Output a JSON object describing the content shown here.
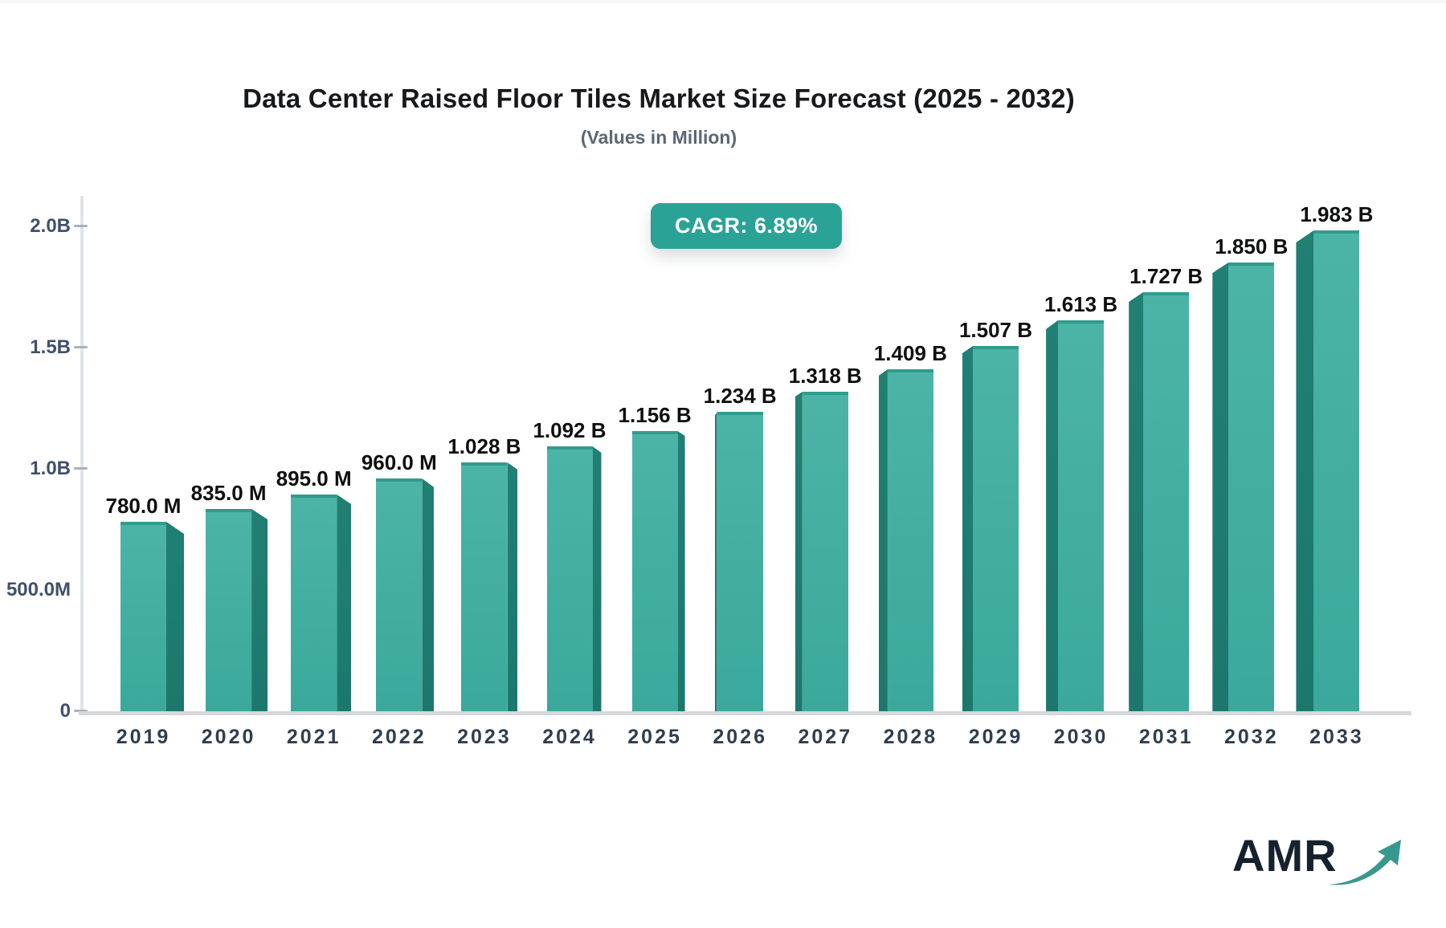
{
  "header": {
    "title": "Data Center Raised Floor Tiles Market Size Forecast (2025 - 2032)",
    "subtitle": "(Values in Million)"
  },
  "badge": {
    "label": "CAGR: 6.89%"
  },
  "logo": {
    "text": "AMR",
    "arrow_icon": "growth-arrow-icon"
  },
  "chart_data": {
    "type": "bar",
    "title": "Data Center Raised Floor Tiles Market Size Forecast (2025 - 2032)",
    "subtitle": "(Values in Million)",
    "cagr_label": "CAGR: 6.89%",
    "unit": "USD, values in millions/billions",
    "categories": [
      "2019",
      "2020",
      "2021",
      "2022",
      "2023",
      "2024",
      "2025",
      "2026",
      "2027",
      "2028",
      "2029",
      "2030",
      "2031",
      "2032",
      "2033"
    ],
    "values_billion": [
      0.78,
      0.835,
      0.895,
      0.96,
      1.028,
      1.092,
      1.156,
      1.234,
      1.318,
      1.409,
      1.507,
      1.613,
      1.727,
      1.85,
      1.983
    ],
    "labels": [
      "780.0 M",
      "835.0 M",
      "895.0 M",
      "960.0 M",
      "1.028 B",
      "1.092 B",
      "1.156 B",
      "1.234 B",
      "1.318 B",
      "1.409 B",
      "1.507 B",
      "1.613 B",
      "1.727 B",
      "1.850 B",
      "1.983 B"
    ],
    "xlabel": "",
    "ylabel": "",
    "y_axis": {
      "range_billion": [
        0,
        2.0
      ],
      "ticks": [
        {
          "label": "2.0B",
          "value": 2.0,
          "dash": true
        },
        {
          "label": "1.5B",
          "value": 1.5,
          "dash": true
        },
        {
          "label": "1.0B",
          "value": 1.0,
          "dash": true
        },
        {
          "label": "500.0M",
          "value": 0.5,
          "dash": false
        },
        {
          "label": "0",
          "value": 0.0,
          "dash": true
        }
      ]
    },
    "grid": false,
    "legend": "none",
    "bar_style": "3d-extruded, perspective vanishing toward center",
    "colors": {
      "bar_face_top": "#4cb4a6",
      "bar_face_bottom": "#3aa99b",
      "bar_rim": "#2f9c8e",
      "bar_side_top": "#217f73",
      "bar_side_bottom": "#1c786c",
      "badge_bg": "#2aa396",
      "badge_text": "#ffffff",
      "axis_line": "#d6d8dc",
      "tick_text": "#41506a",
      "value_text": "#0e0f10",
      "year_text": "#2e3e4f",
      "logo_text": "#15222d",
      "logo_arrow": "#38988f"
    }
  }
}
